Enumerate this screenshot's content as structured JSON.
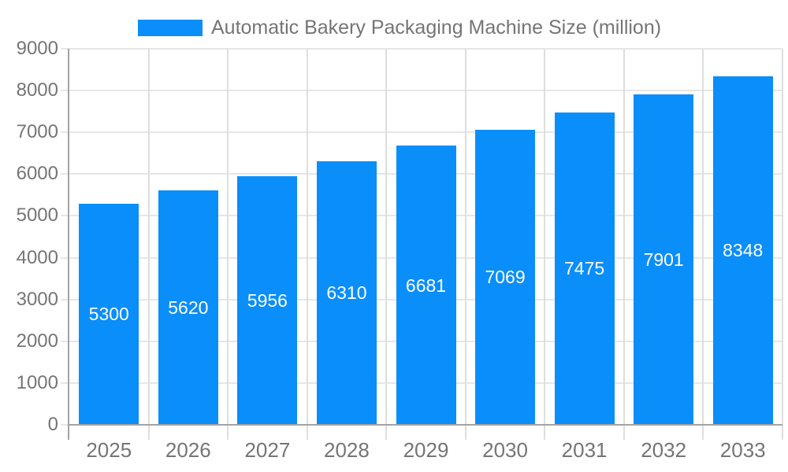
{
  "chart_data": {
    "type": "bar",
    "title": "Automatic Bakery Packaging Machine Size (million)",
    "categories": [
      "2025",
      "2026",
      "2027",
      "2028",
      "2029",
      "2030",
      "2031",
      "2032",
      "2033"
    ],
    "values": [
      5300,
      5620,
      5956,
      6310,
      6681,
      7069,
      7475,
      7901,
      8348
    ],
    "series": [
      {
        "name": "Automatic Bakery Packaging Machine Size (million)",
        "values": [
          5300,
          5620,
          5956,
          6310,
          6681,
          7069,
          7475,
          7901,
          8348
        ]
      }
    ],
    "xlabel": "",
    "ylabel": "",
    "ylim": [
      0,
      9000
    ],
    "yticks": [
      0,
      1000,
      2000,
      3000,
      4000,
      5000,
      6000,
      7000,
      8000,
      9000
    ],
    "grid": true,
    "legend_position": "top",
    "value_label_placement": "inside-center"
  },
  "legend": {
    "label": "Automatic Bakery Packaging Machine Size (million)"
  },
  "colors": {
    "bar": "#0a8ef9",
    "grid_h": "#e6e6e6",
    "grid_v": "#dedede",
    "axis": "#a3a3a3",
    "text": "#757575",
    "value_text": "#ffffff",
    "background": "#ffffff"
  }
}
